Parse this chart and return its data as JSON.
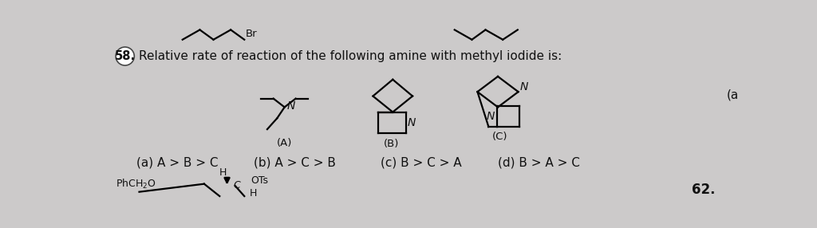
{
  "background_color": "#cccaca",
  "question_number": "58.",
  "question_text": "Relative rate of reaction of the following amine with methyl iodide is:",
  "label_A": "(A)",
  "label_B": "(B)",
  "label_C": "(C)",
  "option_a": "(a) A > B > C",
  "option_b": "(b) A > C > B",
  "option_c": "(c) B > C > A",
  "option_d": "(d) B > A > C",
  "note_right": "(a",
  "fig_width": 10.24,
  "fig_height": 2.86,
  "dpi": 100
}
